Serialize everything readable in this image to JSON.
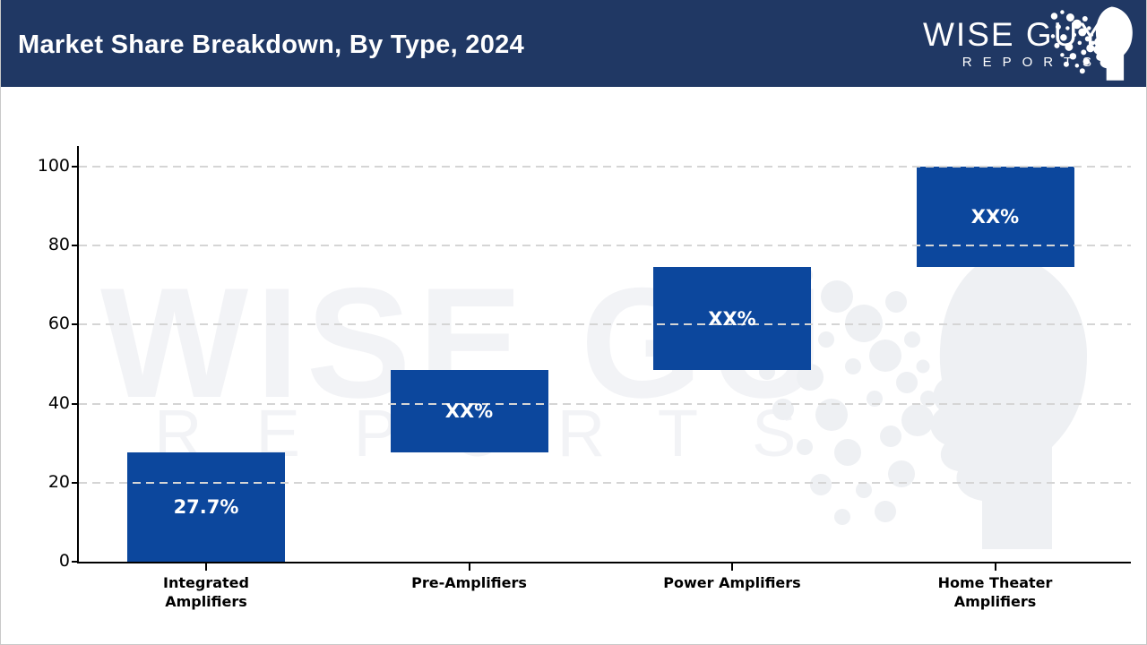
{
  "header": {
    "title": "Market Share Breakdown, By Type, 2024",
    "logo": {
      "wordmark": "WISE GUY",
      "subtext": "REPORTS"
    }
  },
  "watermark": {
    "wordmark": "WISE GU",
    "subtext": "REPORTS"
  },
  "chart_data": {
    "type": "bar",
    "variant": "waterfall",
    "title": "Market Share Breakdown, By Type, 2024",
    "categories": [
      "Integrated\nAmplifiers",
      "Pre-Amplifiers",
      "Power Amplifiers",
      "Home Theater\nAmplifiers"
    ],
    "bars": [
      {
        "category": "Integrated Amplifiers",
        "start": 0,
        "end": 27.7,
        "label": "27.7%"
      },
      {
        "category": "Pre-Amplifiers",
        "start": 27.7,
        "end": 48.5,
        "label": "XX%"
      },
      {
        "category": "Power Amplifiers",
        "start": 48.5,
        "end": 74.6,
        "label": "XX%"
      },
      {
        "category": "Home Theater Amplifiers",
        "start": 74.6,
        "end": 100,
        "label": "XX%"
      }
    ],
    "yticks": [
      0,
      20,
      40,
      60,
      80,
      100
    ],
    "ylim": [
      0,
      105
    ],
    "xlabel": "",
    "ylabel": "",
    "grid": {
      "axis": "y",
      "style": "dashed",
      "on_top": true
    },
    "legend": null,
    "bar_color": "#0c479d",
    "bar_label_color": "#ffffff"
  },
  "colors": {
    "header_bg": "#203864",
    "bar": "#0c479d",
    "grid": "#d5d5d5",
    "watermark": "#f2f3f6",
    "axis": "#000000",
    "page_border": "#c9c9c9"
  }
}
